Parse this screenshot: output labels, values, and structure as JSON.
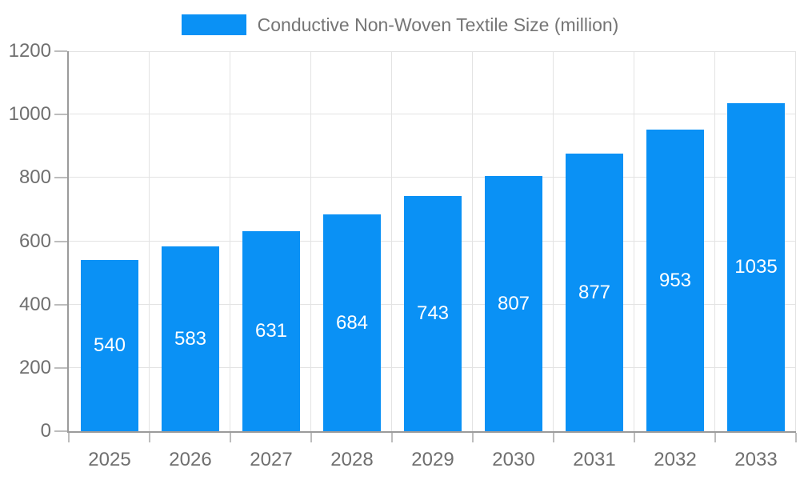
{
  "legend": {
    "label": "Conductive Non-Woven Textile Size (million)"
  },
  "chart_data": {
    "type": "bar",
    "title": "",
    "xlabel": "",
    "ylabel": "",
    "categories": [
      "2025",
      "2026",
      "2027",
      "2028",
      "2029",
      "2030",
      "2031",
      "2032",
      "2033"
    ],
    "values": [
      540,
      583,
      631,
      684,
      743,
      807,
      877,
      953,
      1035
    ],
    "series_name": "Conductive Non-Woven Textile Size (million)",
    "ylim": [
      0,
      1200
    ],
    "yticks": [
      0,
      200,
      400,
      600,
      800,
      1000,
      1200
    ],
    "grid": true,
    "legend_position": "top-center",
    "bar_color": "#0A91F5",
    "bar_label_color": "#FFFFFF",
    "grid_color": "#E3E3E3",
    "axis_color": "#9B9B9B",
    "tick_color": "#BDBDBD",
    "tick_label_color": "#6F6F6F",
    "legend_text_color": "#757575"
  }
}
